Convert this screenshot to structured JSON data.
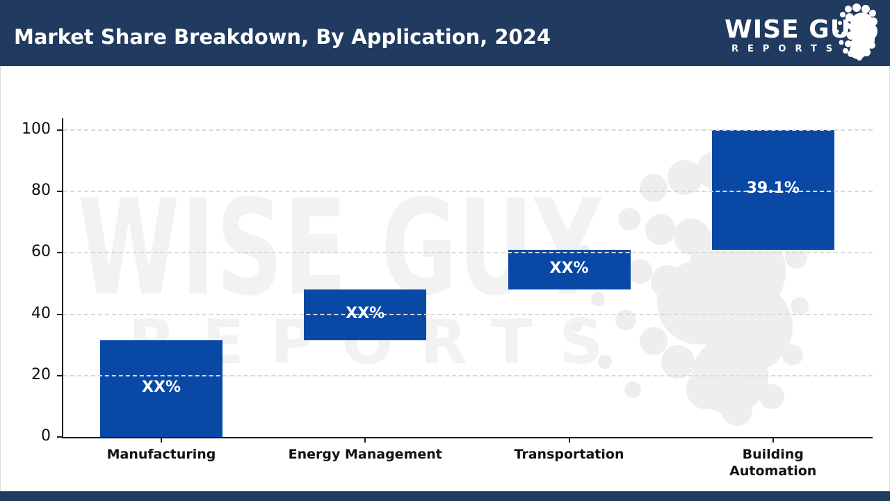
{
  "page": {
    "background": "#ffffff",
    "border_color": "#d9d9d9"
  },
  "header": {
    "bg_color": "#213a60",
    "title": "Market Share Breakdown, By Application, 2024",
    "logo": {
      "name": "WISE GUY",
      "sub": "REPORTS"
    }
  },
  "watermark": {
    "line1": "WISE GUY",
    "line2": "REPORTS"
  },
  "footer": {
    "bg_color": "#213a60"
  },
  "chart_data": {
    "type": "bar",
    "subtype": "waterfall",
    "title": "Market Share Breakdown, By Application, 2024",
    "categories": [
      "Manufacturing",
      "Energy Management",
      "Transportation",
      "Building Automation"
    ],
    "category_lines": [
      [
        "Manufacturing"
      ],
      [
        "Energy Management"
      ],
      [
        "Transportation"
      ],
      [
        "Building",
        "Automation"
      ]
    ],
    "bars": [
      {
        "category": "Manufacturing",
        "start": 0,
        "end": 31.5,
        "value": 31.5,
        "label": "XX%"
      },
      {
        "category": "Energy Management",
        "start": 31.5,
        "end": 48.0,
        "value": 16.5,
        "label": "XX%"
      },
      {
        "category": "Transportation",
        "start": 48.0,
        "end": 60.9,
        "value": 12.9,
        "label": "XX%"
      },
      {
        "category": "Building Automation",
        "start": 60.9,
        "end": 100,
        "value": 39.1,
        "label": "39.1%"
      }
    ],
    "xlabel": "",
    "ylabel": "",
    "ylim": [
      0,
      104
    ],
    "yticks": [
      0,
      20,
      40,
      60,
      80,
      100
    ],
    "grid": "horizontal-dashed",
    "grid_color": "#d9d9d9",
    "legend": "none",
    "bar_color": "#0948a5",
    "bar_label_color": "#ffffff",
    "axis_color": "#1a1a1a"
  }
}
